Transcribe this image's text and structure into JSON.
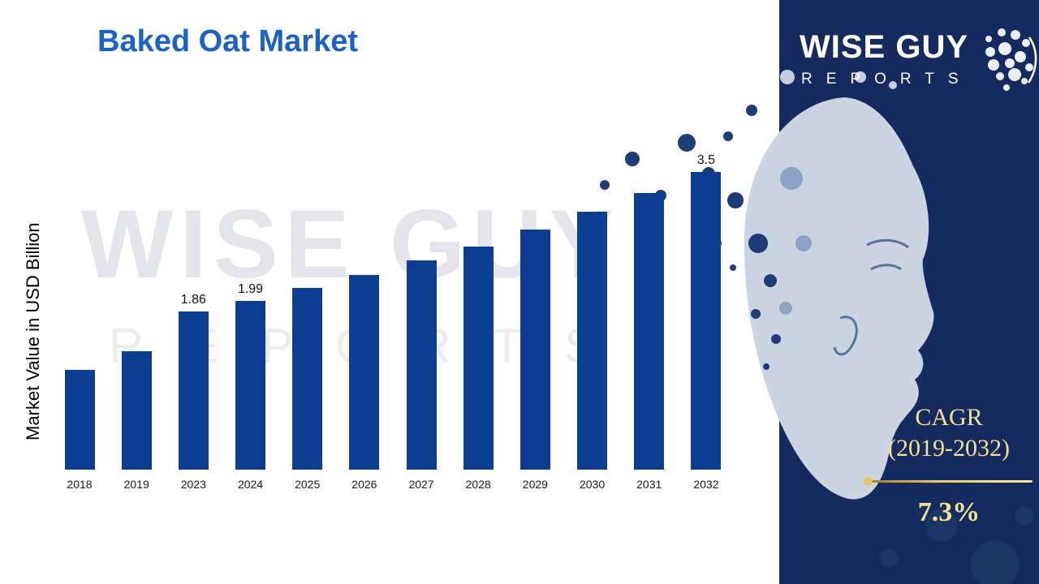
{
  "title": "Baked Oat Market",
  "watermark": {
    "line1": "WISE GUY",
    "line2": "REPORTS"
  },
  "chart_data": {
    "type": "bar",
    "title": "Baked Oat Market",
    "xlabel": "",
    "ylabel": "Market Value in USD Billion",
    "categories": [
      "2018",
      "2019",
      "2023",
      "2024",
      "2025",
      "2026",
      "2027",
      "2028",
      "2029",
      "2030",
      "2031",
      "2032"
    ],
    "values": [
      1.17,
      1.39,
      1.86,
      1.99,
      2.14,
      2.29,
      2.46,
      2.63,
      2.83,
      3.04,
      3.26,
      3.5
    ],
    "data_labels": [
      "",
      "",
      "1.86",
      "1.99",
      "",
      "",
      "",
      "",
      "",
      "",
      "",
      "3.5"
    ],
    "ylim": [
      0,
      3.8
    ],
    "grid": false,
    "legend": false,
    "bar_color": "#0b3d91"
  },
  "brand": {
    "logo_line1": "WISE GUY",
    "logo_line2": "REPORTS",
    "panel_color": "#152a5e",
    "accent_color": "#f2e391",
    "title_color": "#1a62c9"
  },
  "cagr": {
    "label_line1": "CAGR",
    "label_line2": "(2019-2032)",
    "value": "7.3%"
  }
}
